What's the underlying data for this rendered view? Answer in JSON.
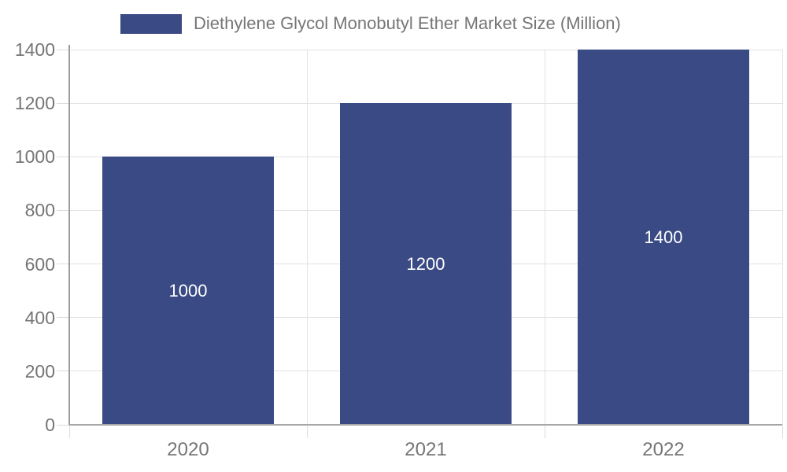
{
  "legend": {
    "label": "Diethylene Glycol Monobutyl Ether Market Size (Million)"
  },
  "colors": {
    "bar": "#3A4A85",
    "axis_text": "#757575",
    "gridline": "#E2E2E2",
    "tick": "#DCDCDC",
    "axis_line_left": "#9E9E9E",
    "axis_line_bottom": "#A6A6A6",
    "data_label": "#FFFFFF",
    "background": "#FFFFFF"
  },
  "chart_data": {
    "type": "bar",
    "title": "",
    "xlabel": "",
    "ylabel": "",
    "categories": [
      "2020",
      "2021",
      "2022"
    ],
    "series": [
      {
        "name": "Diethylene Glycol Monobutyl Ether Market Size (Million)",
        "values": [
          1000,
          1200,
          1400
        ]
      }
    ],
    "data_labels": [
      "1000",
      "1200",
      "1400"
    ],
    "ylim": [
      0,
      1400
    ],
    "ytick_step": 200,
    "yticks": [
      0,
      200,
      400,
      600,
      800,
      1000,
      1200,
      1400
    ],
    "grid": true,
    "legend_position": "top"
  }
}
